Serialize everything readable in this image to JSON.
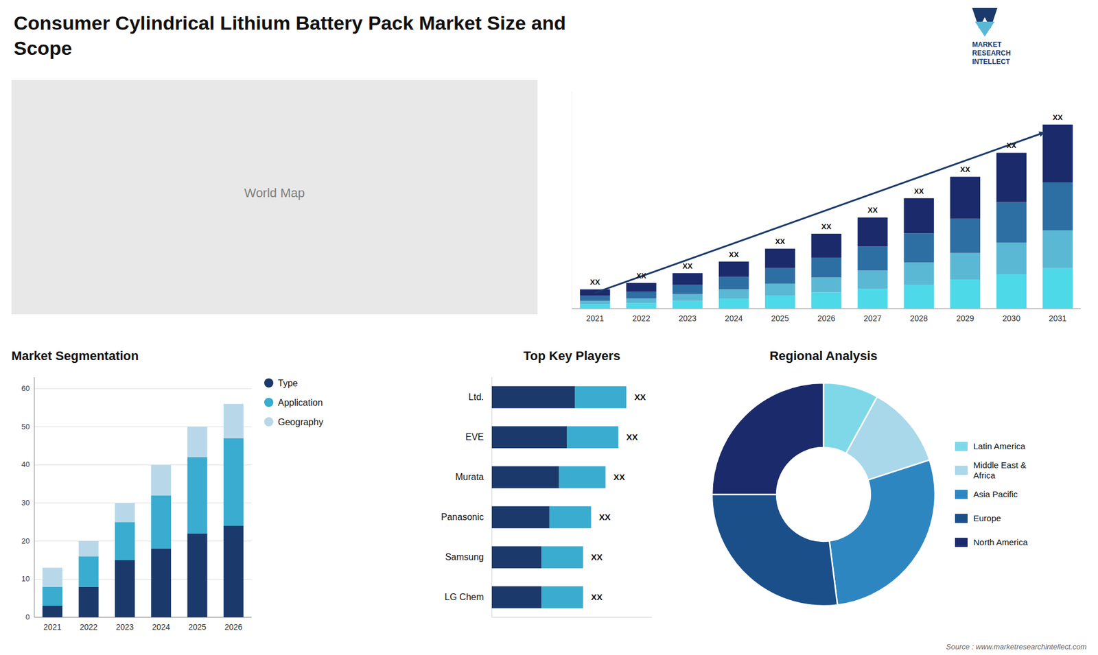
{
  "chart_data": [
    {
      "type": "bar",
      "title": "Consumer Cylindrical Lithium Battery Pack Market Size and\nScope",
      "stacked": true,
      "categories": [
        "2021",
        "2022",
        "2023",
        "2024",
        "2025",
        "2026",
        "2027",
        "2028",
        "2029",
        "2030",
        "2031"
      ],
      "series": [
        {
          "color": "#4DD9E8",
          "values": [
            1.0,
            1.3,
            1.8,
            2.4,
            3.0,
            3.8,
            4.6,
            5.6,
            6.8,
            8.0,
            9.5
          ]
        },
        {
          "color": "#5BB8D4",
          "values": [
            0.8,
            1.1,
            1.6,
            2.1,
            2.8,
            3.5,
            4.3,
            5.2,
            6.2,
            7.4,
            8.8
          ]
        },
        {
          "color": "#2E6FA3",
          "values": [
            1.2,
            1.6,
            2.2,
            2.9,
            3.7,
            4.6,
            5.6,
            6.8,
            8.0,
            9.5,
            11.2
          ]
        },
        {
          "color": "#1B2A6B",
          "values": [
            1.5,
            2.0,
            2.7,
            3.6,
            4.5,
            5.6,
            6.8,
            8.2,
            9.8,
            11.5,
            13.5
          ]
        }
      ],
      "ylim": [
        0,
        50.74
      ],
      "tick_labels": "x",
      "annotations": [
        "XX",
        "XX",
        "XX",
        "XX",
        "XX",
        "XX",
        "XX",
        "XX",
        "XX",
        "XX",
        "XX",
        "MARKET",
        "RESEARCH",
        "INTELLECT",
        "Source : www.marketresearchintellect.com"
      ]
    },
    {
      "type": "map",
      "annotations": [
        "World Map"
      ]
    },
    {
      "type": "bar",
      "title": "Market Segmentation",
      "stacked": true,
      "categories": [
        "2021",
        "2022",
        "2023",
        "2024",
        "2025",
        "2026"
      ],
      "series": [
        {
          "name": "Type",
          "color": "#1B3A6B",
          "values": [
            3,
            8,
            15,
            18,
            22,
            24
          ]
        },
        {
          "name": "Application",
          "color": "#3AACCF",
          "values": [
            5,
            8,
            10,
            14,
            20,
            23
          ]
        },
        {
          "name": "Geography",
          "color": "#B8D8EA",
          "values": [
            5,
            4,
            5,
            8,
            8,
            9
          ]
        }
      ],
      "ylim": [
        0,
        63
      ],
      "yticks": [
        0,
        10,
        20,
        30,
        40,
        50,
        60
      ],
      "grid": true,
      "legend": "right"
    },
    {
      "type": "bar",
      "title": "Top Key Players",
      "orientation": "horizontal",
      "stacked": true,
      "categories": [
        "Ltd.",
        "EVE",
        "Murata",
        "Panasonic",
        "Samsung",
        "LG Chem"
      ],
      "series": [
        {
          "color": "#1B3A6B",
          "values": [
            0.52,
            0.47,
            0.42,
            0.36,
            0.31,
            0.31
          ]
        },
        {
          "color": "#3AACCF",
          "values": [
            0.32,
            0.32,
            0.29,
            0.26,
            0.26,
            0.26
          ]
        }
      ],
      "xlim": [
        0,
        1
      ],
      "tick_labels": "y",
      "annotations": [
        "XX",
        "XX",
        "XX",
        "XX",
        "XX",
        "XX"
      ]
    },
    {
      "type": "pie",
      "title": "Regional Analysis",
      "categories": [
        "Latin America",
        "Middle East &\nAfrica",
        "Asia Pacific",
        "Europe",
        "North America"
      ],
      "values": [
        8,
        12,
        28,
        27,
        25
      ],
      "colors": [
        "#7FD8E8",
        "#A8D8EA",
        "#2E86C1",
        "#1B4F8A",
        "#1B2A6B"
      ],
      "legend": "right"
    }
  ]
}
